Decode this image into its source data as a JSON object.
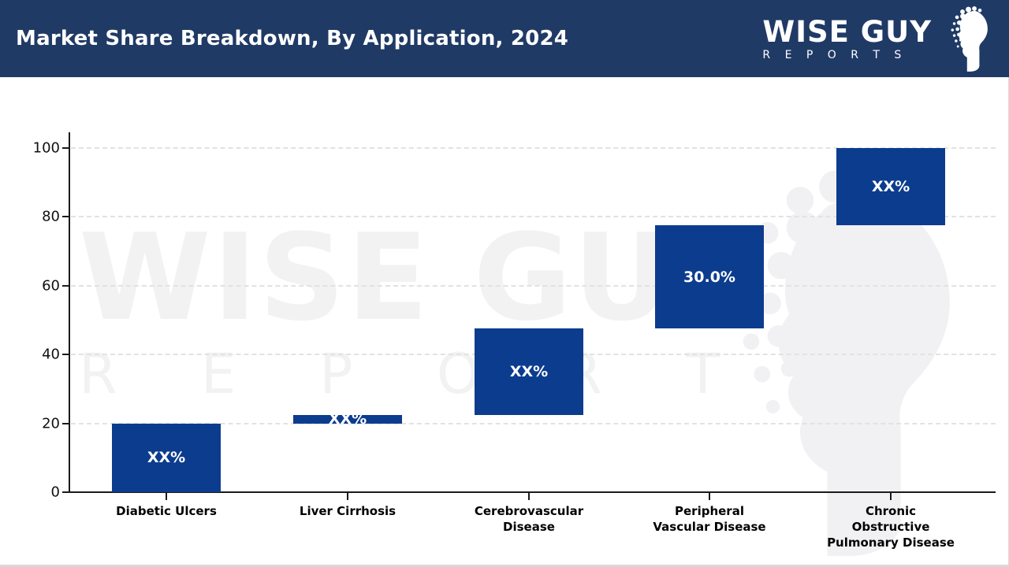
{
  "page": {
    "background": "#ffffff",
    "border_color": "#d9d9d9"
  },
  "header": {
    "background": "#203a66",
    "title": "Market Share Breakdown, By Application, 2024",
    "logo": {
      "name": "WISE GUY",
      "sub": "R E P O R T S"
    }
  },
  "watermark": {
    "name": "WISE GUY",
    "sub": "R E P O R T S"
  },
  "chart_data": {
    "type": "bar",
    "subtype": "floating-waterfall",
    "title": "Market Share Breakdown, By Application, 2024",
    "categories": [
      "Diabetic Ulcers",
      "Liver Cirrhosis",
      "Cerebrovascular Disease",
      "Peripheral Vascular Disease",
      "Chronic Obstructive Pulmonary Disease"
    ],
    "category_lines": [
      [
        "Diabetic Ulcers"
      ],
      [
        "Liver Cirrhosis"
      ],
      [
        "Cerebrovascular",
        "Disease"
      ],
      [
        "Peripheral",
        "Vascular Disease"
      ],
      [
        "Chronic",
        "Obstructive",
        "Pulmonary Disease"
      ]
    ],
    "bars": [
      {
        "category": "Diabetic Ulcers",
        "start": 0,
        "end": 20,
        "label": "XX%"
      },
      {
        "category": "Liver Cirrhosis",
        "start": 20,
        "end": 22.5,
        "label": "XX%"
      },
      {
        "category": "Cerebrovascular Disease",
        "start": 22.5,
        "end": 47.5,
        "label": "XX%"
      },
      {
        "category": "Peripheral Vascular Disease",
        "start": 47.5,
        "end": 77.5,
        "label": "30.0%"
      },
      {
        "category": "Chronic Obstructive Pulmonary Disease",
        "start": 77.5,
        "end": 100,
        "label": "XX%"
      }
    ],
    "xlabel": "",
    "ylabel": "",
    "ylim": [
      0,
      100
    ],
    "yticks": [
      0,
      20,
      40,
      60,
      80,
      100
    ],
    "grid": "horizontal-dashed",
    "legend": "none",
    "bar_color": "#0c3c8e",
    "bar_label_color": "#ffffff"
  }
}
